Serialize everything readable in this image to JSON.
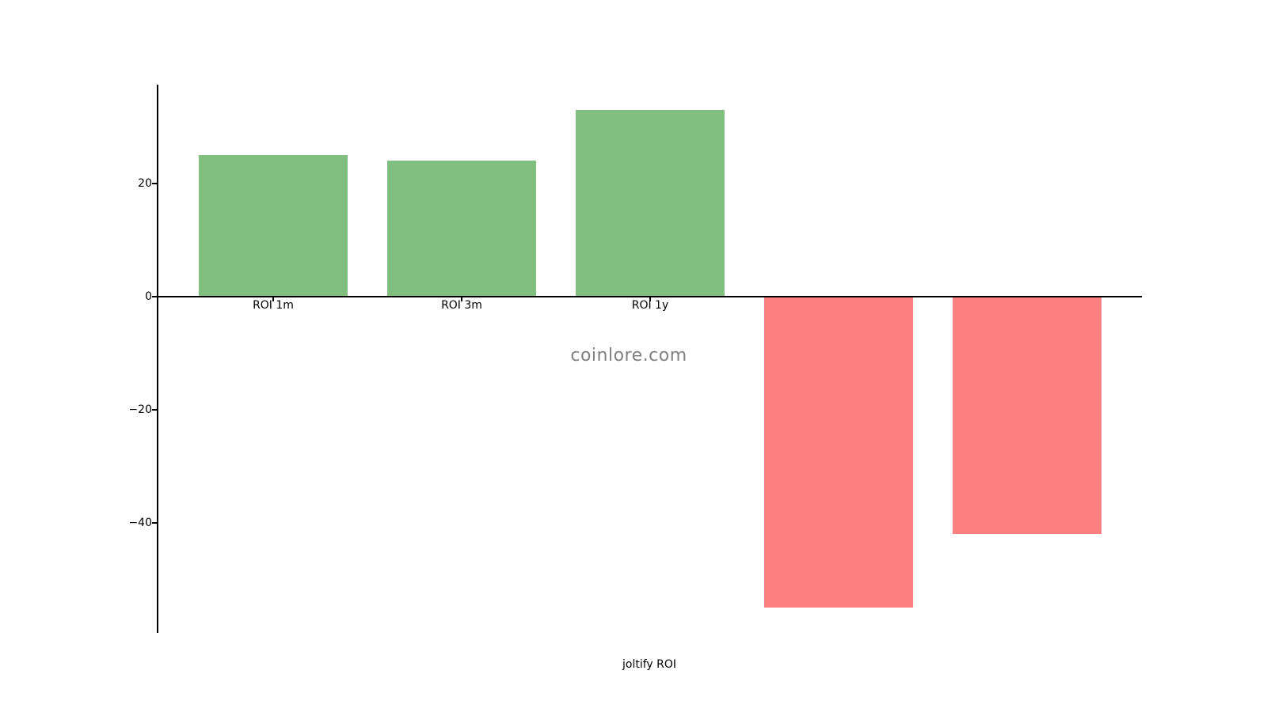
{
  "chart_data": {
    "type": "bar",
    "title": "",
    "xlabel": "joltify ROI",
    "ylabel": "",
    "watermark": "coinlore.com",
    "categories": [
      "ROI 1m",
      "ROI 3m",
      "ROI 1y",
      "",
      ""
    ],
    "values": [
      25,
      24,
      33,
      -55,
      -42
    ],
    "bar_colors": [
      "#80bf80",
      "#80bf80",
      "#80bf80",
      "#ff8080",
      "#ff8080"
    ],
    "yticks": [
      {
        "value": 20,
        "label": "20"
      },
      {
        "value": 0,
        "label": "0"
      },
      {
        "value": -20,
        "label": "−20"
      },
      {
        "value": -40,
        "label": "−40"
      }
    ],
    "ylim": [
      -59.4,
      37.5
    ],
    "grid": false,
    "legend": "none",
    "colors": {
      "positive": "#80bf80",
      "negative": "#ff8080",
      "axis": "#000000",
      "tick_text": "#000000",
      "watermark": "#808080",
      "background": "#ffffff"
    }
  }
}
